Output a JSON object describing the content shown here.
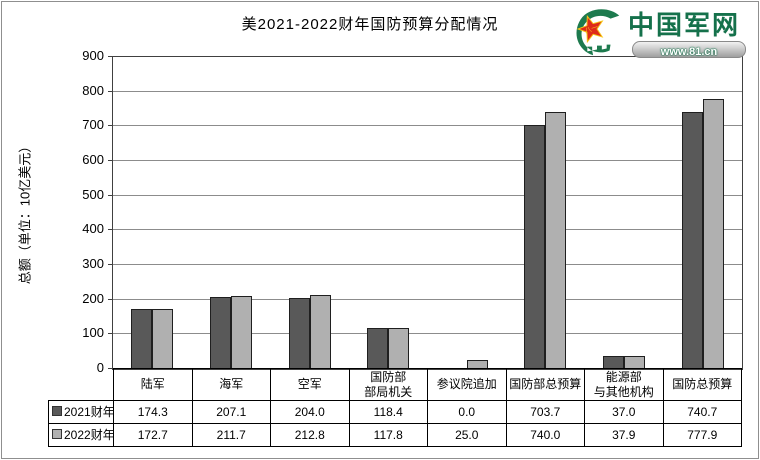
{
  "logo": {
    "site_name": "中国军网",
    "url": "www.81.cn",
    "green": "#15714b",
    "star_red": "#df2b1a",
    "star_gold": "#f5c518",
    "emblem_text": "八一"
  },
  "chart_data": {
    "type": "bar",
    "title": "美2021-2022财年国防预算分配情况",
    "ylabel": "总额（单位：10亿美元）",
    "xlabel": "",
    "ylim": [
      0,
      900
    ],
    "ytick_step": 100,
    "grid": true,
    "legend_position": "table-left",
    "categories": [
      "陆军",
      "海军",
      "空军",
      "国防部部局机关",
      "参议院追加",
      "国防部总预算",
      "能源部与其他机构",
      "国防总预算"
    ],
    "categories_display": [
      [
        "陆军"
      ],
      [
        "海军"
      ],
      [
        "空军"
      ],
      [
        "国防部",
        "部局机关"
      ],
      [
        "参议院追加"
      ],
      [
        "国防部总预算"
      ],
      [
        "能源部",
        "与其他机构"
      ],
      [
        "国防总预算"
      ]
    ],
    "series": [
      {
        "name": "2021财年",
        "color": "#595959",
        "values": [
          174.3,
          207.1,
          204.0,
          118.4,
          0.0,
          703.7,
          37.0,
          740.7
        ]
      },
      {
        "name": "2022财年",
        "color": "#b0b0b0",
        "values": [
          172.7,
          211.7,
          212.8,
          117.8,
          25.0,
          740.0,
          37.9,
          777.9
        ]
      }
    ],
    "bar_border_color": "#1f1f1f",
    "gridline_color": "#8c8c8c"
  }
}
